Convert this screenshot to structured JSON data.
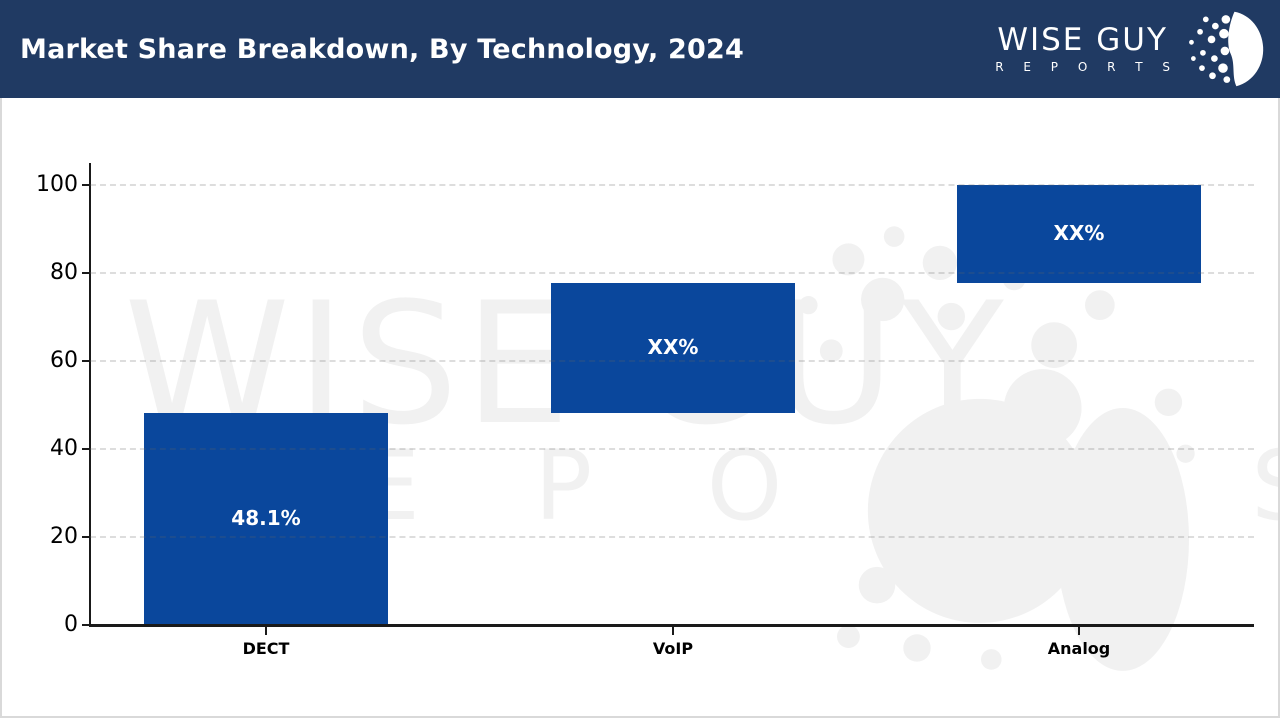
{
  "header": {
    "title": "Market Share Breakdown, By Technology, 2024",
    "logo": {
      "line1": "WISE GUY",
      "line2": "R E P O R T S"
    }
  },
  "watermark": {
    "line1": "WISE GUY",
    "line2": "R E P O R T S"
  },
  "chart_data": {
    "type": "bar",
    "subtype": "waterfall",
    "title": "Market Share Breakdown, By Technology, 2024",
    "categories": [
      "DECT",
      "VoIP",
      "Analog"
    ],
    "series": [
      {
        "name": "Market Share",
        "segments": [
          {
            "category": "DECT",
            "start": 0,
            "end": 48.1,
            "label": "48.1%"
          },
          {
            "category": "VoIP",
            "start": 48.1,
            "end": 77.8,
            "label": "XX%"
          },
          {
            "category": "Analog",
            "start": 77.8,
            "end": 100,
            "label": "XX%"
          }
        ]
      }
    ],
    "xlabel": "",
    "ylabel": "",
    "ylim": [
      0,
      100
    ],
    "yticks": [
      0,
      20,
      40,
      60,
      80,
      100
    ],
    "grid": "horizontal-dashed",
    "legend": "none",
    "bar_color": "#0a479c",
    "bar_label_color": "#ffffff"
  },
  "colors": {
    "header_bg": "#203a63",
    "bar": "#0a479c",
    "watermark": "#f1f1f1",
    "axis": "#1a1a1a",
    "frame": "#d9d9d9"
  }
}
